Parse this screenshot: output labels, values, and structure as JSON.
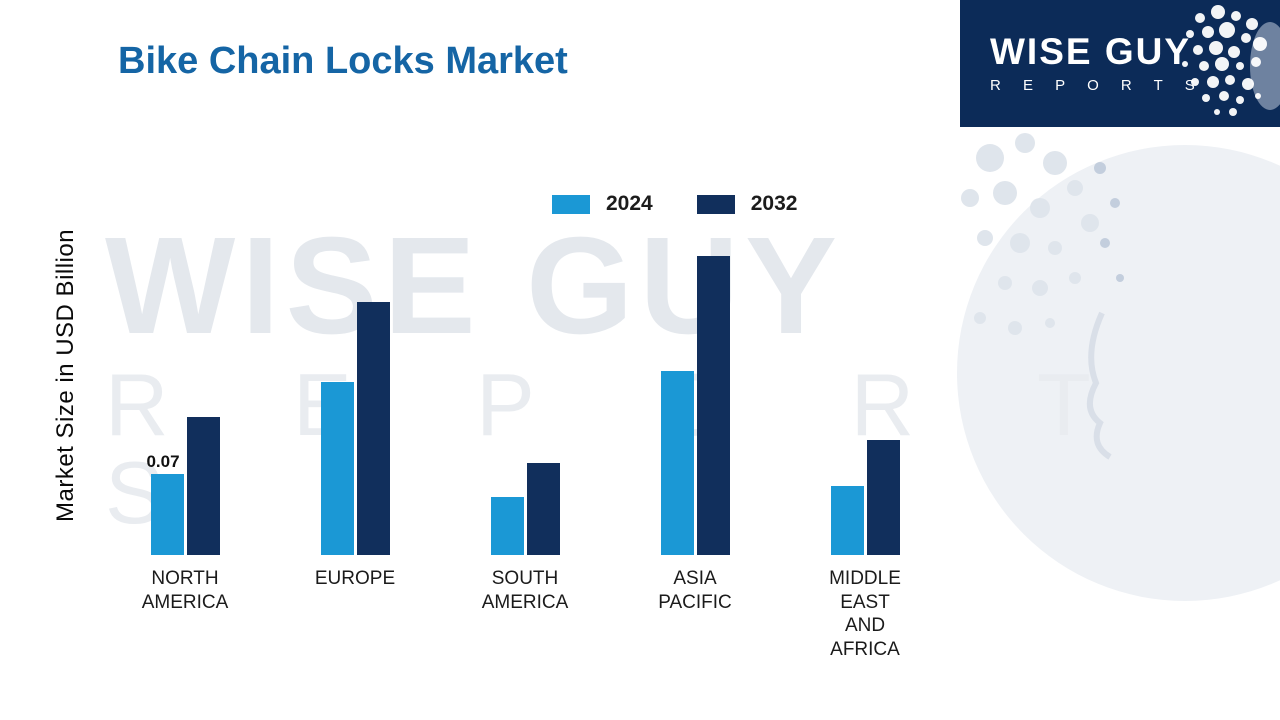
{
  "page": {
    "title": "Bike Chain Locks Market",
    "ylabel": "Market Size in USD Billion"
  },
  "logo": {
    "line1": "WISE GUY",
    "line2": "R E P O R T S"
  },
  "watermark": {
    "line1": "WISE GUY",
    "line2": "R E P O R T S"
  },
  "legend": [
    {
      "label": "2024",
      "color": "#1b98d5"
    },
    {
      "label": "2032",
      "color": "#112f5c"
    }
  ],
  "chart_data": {
    "type": "bar",
    "title": "Bike Chain Locks Market",
    "xlabel": "",
    "ylabel": "Market Size in USD Billion",
    "categories": [
      "NORTH AMERICA",
      "EUROPE",
      "SOUTH AMERICA",
      "ASIA PACIFIC",
      "MIDDLE EAST AND AFRICA"
    ],
    "series": [
      {
        "name": "2024",
        "color": "#1b98d5",
        "values": [
          0.07,
          0.15,
          0.05,
          0.16,
          0.06
        ]
      },
      {
        "name": "2032",
        "color": "#112f5c",
        "values": [
          0.12,
          0.22,
          0.08,
          0.26,
          0.1
        ]
      }
    ],
    "data_labels": [
      {
        "series": "2024",
        "category": "NORTH AMERICA",
        "value": "0.07"
      }
    ],
    "ylim": [
      0,
      0.28
    ],
    "grid": false,
    "legend_position": "top"
  }
}
